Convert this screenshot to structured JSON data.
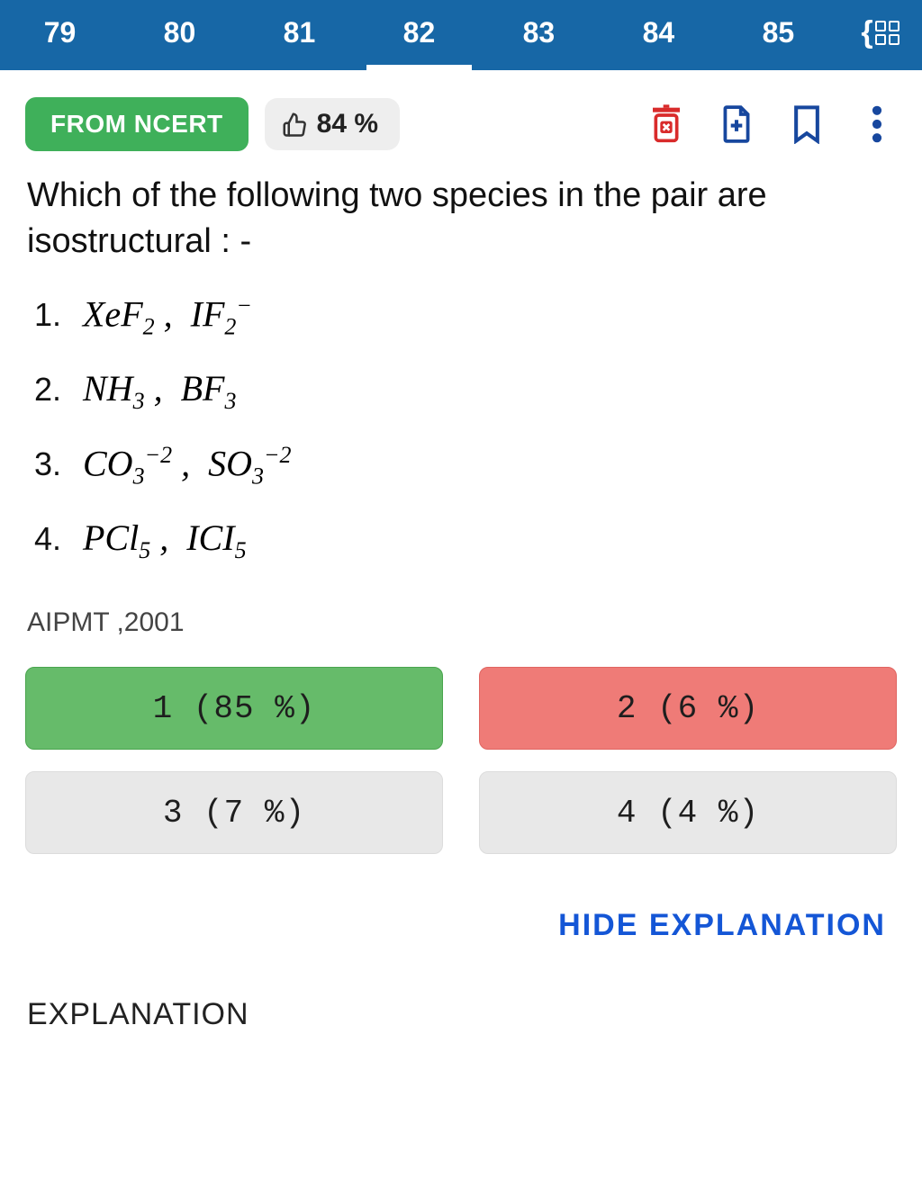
{
  "tabs": {
    "items": [
      "79",
      "80",
      "81",
      "82",
      "83",
      "84",
      "85"
    ],
    "active_index": 3,
    "bg_color": "#1767a6",
    "text_color": "#ffffff"
  },
  "badge": {
    "label": "FROM NCERT",
    "bg": "#3fb05a"
  },
  "like": {
    "percent": "84 %"
  },
  "icons": {
    "delete_color": "#d92b2b",
    "add_color": "#17479e",
    "bookmark_color": "#17479e",
    "more_color": "#17479e"
  },
  "question": {
    "text": "Which of the following two species in the pair are isostructural : -",
    "options_html": [
      "<i>XeF</i><sub>2</sub>&nbsp;,&nbsp;&nbsp;<i>IF</i><sub>2</sub><sup>&#8722;</sup>",
      "<i>NH</i><sub>3</sub>&nbsp;,&nbsp;&nbsp;<i>BF</i><sub>3</sub>",
      "<i>CO</i><sub>3</sub><sup>&#8722;2</sup>&nbsp;,&nbsp;&nbsp;<i>SO</i><sub>3</sub><sup>&#8722;2</sup>",
      "<i>PCl</i><sub>5</sub>&nbsp;,&nbsp;&nbsp;<i>ICI</i><sub>5</sub>"
    ],
    "option_numbers": [
      "1.",
      "2.",
      "3.",
      "4."
    ],
    "source": "AIPMT ,2001"
  },
  "answers": [
    {
      "label": "1 (85 %)",
      "state": "correct"
    },
    {
      "label": "2 (6 %)",
      "state": "wrong"
    },
    {
      "label": "3 (7 %)",
      "state": "plain"
    },
    {
      "label": "4 (4 %)",
      "state": "plain"
    }
  ],
  "explanation": {
    "toggle_label": "HIDE EXPLANATION",
    "heading": "EXPLANATION"
  },
  "colors": {
    "correct_bg": "#66bb6a",
    "wrong_bg": "#ef7b77",
    "plain_bg": "#e8e8e8",
    "link": "#1456d6"
  }
}
